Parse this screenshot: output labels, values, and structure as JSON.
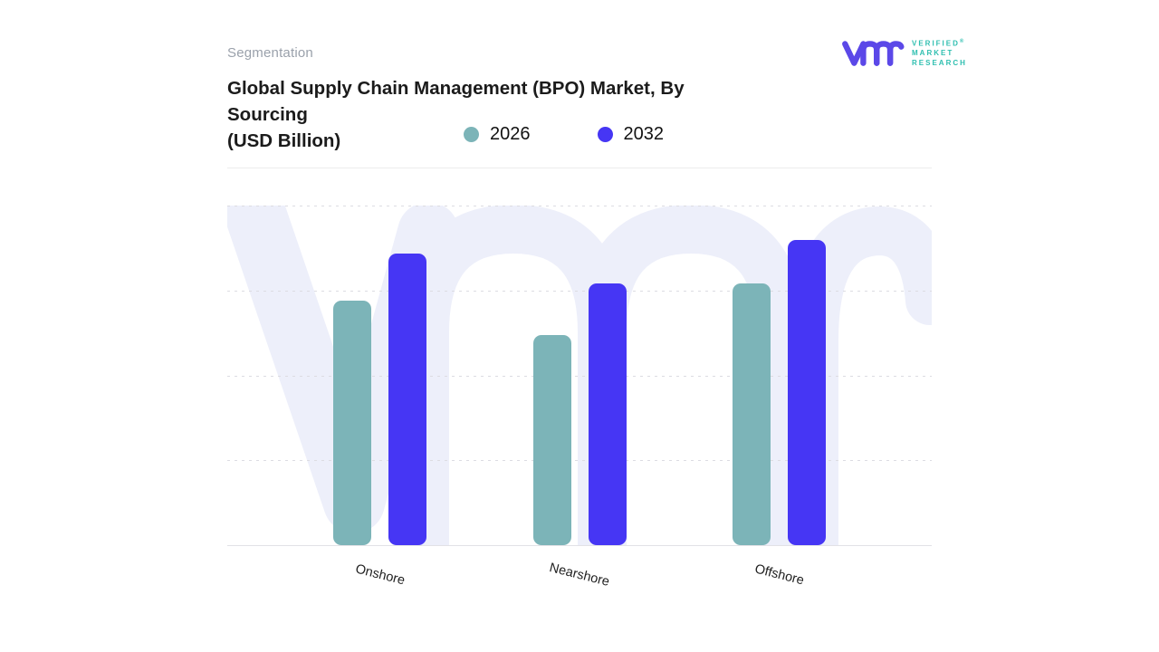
{
  "page": {
    "background": "#ffffff"
  },
  "header": {
    "eyebrow": "Segmentation",
    "title_lines": [
      "Global Supply Chain Management (BPO) Market, By",
      "Sourcing",
      "(USD Billion)"
    ]
  },
  "brand": {
    "name_lines": [
      "VERIFIED",
      "MARKET",
      "RESEARCH"
    ],
    "registered": "®",
    "mark_color": "#5b48e8",
    "text_color": "#2fbfb0"
  },
  "legend": {
    "items": [
      {
        "label": "2026",
        "color": "#7cb4b8"
      },
      {
        "label": "2032",
        "color": "#4636f4"
      }
    ]
  },
  "chart_data": {
    "type": "bar",
    "title": "Global Supply Chain Management (BPO) Market, By Sourcing (USD Billion)",
    "categories": [
      "Onshore",
      "Nearshore",
      "Offshore"
    ],
    "series": [
      {
        "name": "2026",
        "color": "#7cb4b8",
        "values": [
          72,
          62,
          77
        ]
      },
      {
        "name": "2032",
        "color": "#4636f4",
        "values": [
          86,
          77,
          90
        ]
      }
    ],
    "xlabel": "",
    "ylabel": "",
    "ylim": [
      0,
      100
    ],
    "grid": "horizontal-dotted-4-intervals",
    "legend_position": "top-center",
    "y_tick_labels": []
  },
  "watermark": {
    "glyph": "vmr",
    "color": "#edeffa"
  }
}
